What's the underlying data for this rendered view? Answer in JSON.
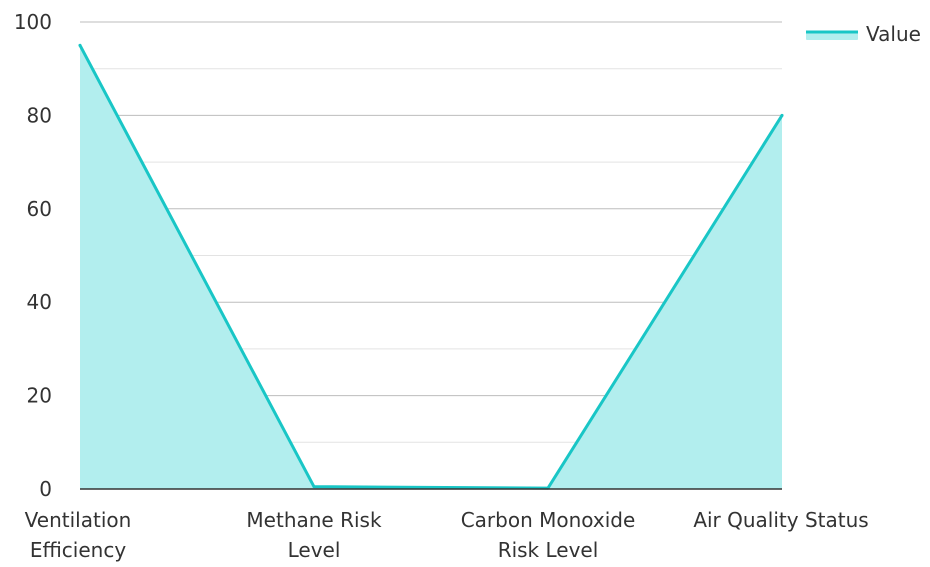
{
  "chart_data": {
    "type": "area",
    "categories": [
      [
        "Ventilation",
        "Efficiency"
      ],
      [
        "Methane Risk",
        "Level"
      ],
      [
        "Carbon Monoxide",
        "Risk Level"
      ],
      [
        "Air Quality Status"
      ]
    ],
    "series": [
      {
        "name": "Value",
        "values": [
          95,
          0.5,
          0.2,
          80
        ]
      }
    ],
    "ylim": [
      0,
      100
    ],
    "yticks": [
      0,
      20,
      40,
      60,
      80,
      100
    ],
    "grid": true,
    "legend_position": "top-right",
    "colors": {
      "line": "#19c6c6",
      "fill": "#b2eeee",
      "grid_major": "#bdbdbd",
      "grid_minor": "#e3e3e3",
      "axis": "#333333",
      "text": "#333333"
    }
  }
}
